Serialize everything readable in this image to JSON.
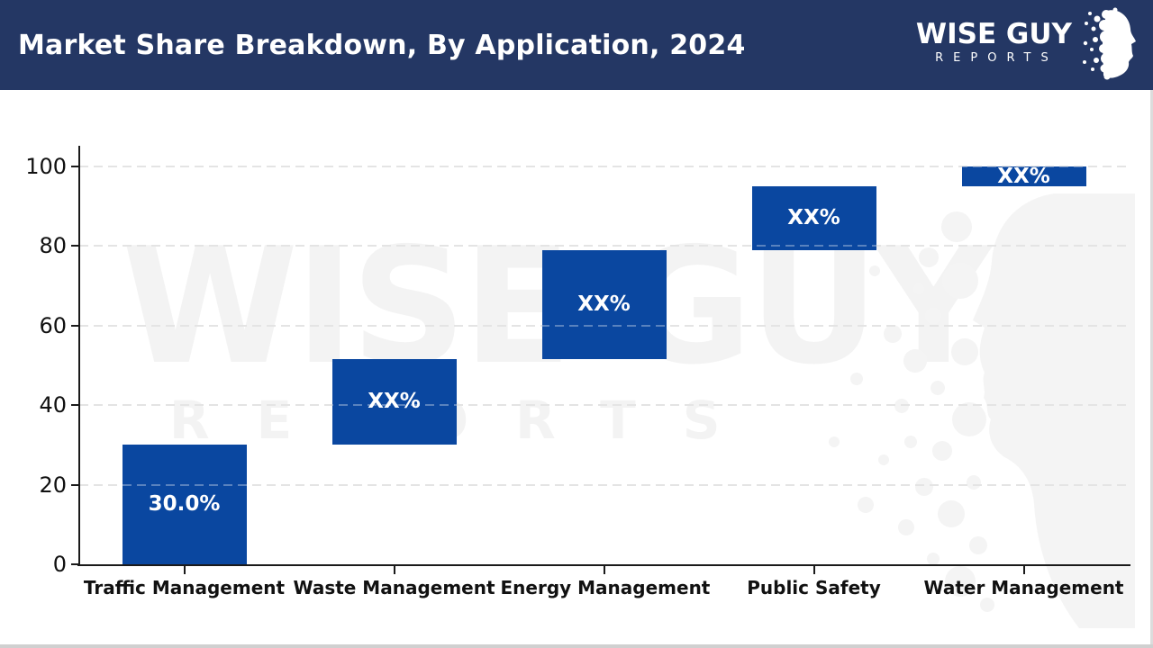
{
  "header": {
    "title": "Market Share Breakdown, By Application, 2024",
    "logo": {
      "line1": "WISE GUY",
      "line2": "REPORTS",
      "head_icon": "dotted-face-profile"
    }
  },
  "watermark": {
    "line1": "WISE GUY",
    "line2": "REPORTS"
  },
  "chart_data": {
    "type": "bar",
    "subtype": "waterfall",
    "title": "Market Share Breakdown, By Application, 2024",
    "categories": [
      "Traffic Management",
      "Waste Management",
      "Energy Management",
      "Public Safety",
      "Water Management"
    ],
    "series": [
      {
        "name": "Market Share (%)",
        "segments": [
          {
            "category": "Traffic Management",
            "start": 0,
            "end": 30,
            "label": "30.0%"
          },
          {
            "category": "Waste Management",
            "start": 30,
            "end": 51.5,
            "label": "XX%"
          },
          {
            "category": "Energy Management",
            "start": 51.5,
            "end": 79,
            "label": "XX%"
          },
          {
            "category": "Public Safety",
            "start": 79,
            "end": 95,
            "label": "XX%"
          },
          {
            "category": "Water Management",
            "start": 95,
            "end": 100,
            "label": "XX%"
          }
        ]
      }
    ],
    "xlabel": "",
    "ylabel": "",
    "yticks": [
      0,
      20,
      40,
      60,
      80,
      100
    ],
    "ylim": [
      0,
      105
    ],
    "grid": "horizontal dashed",
    "legend": "none"
  },
  "colors": {
    "header_bg": "#243764",
    "bar": "#0a47a0",
    "grid": "#d7d7d7",
    "axis": "#1a1a1a",
    "bar_label": "#ffffff",
    "watermark": "#f3f3f3",
    "page_bg": "#ffffff",
    "bottom_strip": "#d0d0d0"
  }
}
